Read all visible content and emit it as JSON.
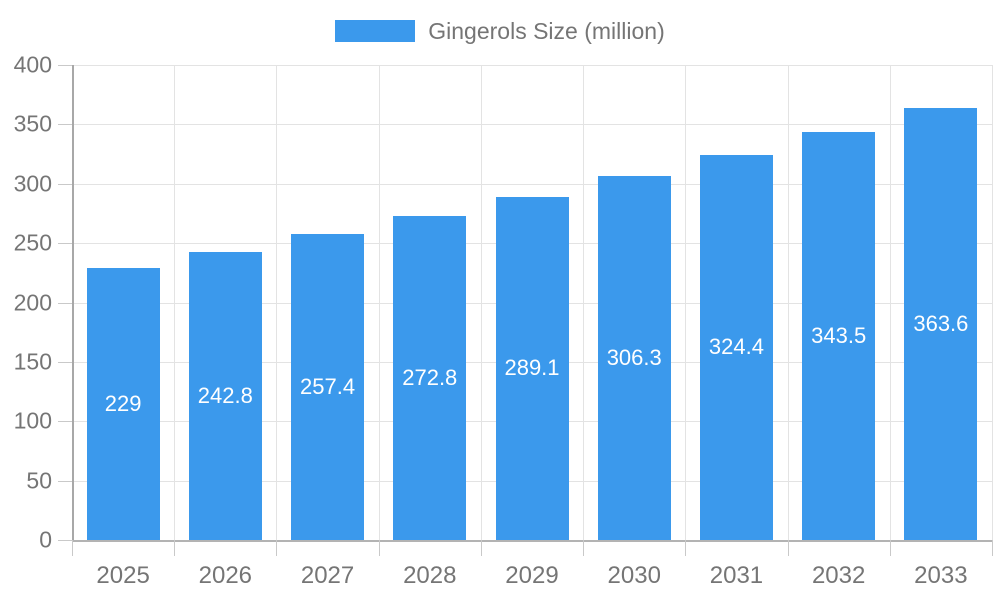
{
  "colors": {
    "bar": "#3b99ec",
    "grid": "#e3e3e3",
    "baseline": "#b3b3b3",
    "axis": "#a8a8a8",
    "tick": "#c9c9c9",
    "text": "#757575",
    "bar_label": "#ffffff",
    "background": "#ffffff"
  },
  "chart_data": {
    "type": "bar",
    "title": "",
    "categories": [
      "2025",
      "2026",
      "2027",
      "2028",
      "2029",
      "2030",
      "2031",
      "2032",
      "2033"
    ],
    "series": [
      {
        "name": "Gingerols Size (million)",
        "values": [
          229,
          242.8,
          257.4,
          272.8,
          289.1,
          306.3,
          324.4,
          343.5,
          363.6
        ]
      }
    ],
    "xlabel": "",
    "ylabel": "",
    "ylim": [
      0,
      400
    ],
    "ytick_step": 50,
    "yticks": [
      0,
      50,
      100,
      150,
      200,
      250,
      300,
      350,
      400
    ],
    "grid": true,
    "legend_position": "top-center",
    "value_labels": "inside-center"
  }
}
